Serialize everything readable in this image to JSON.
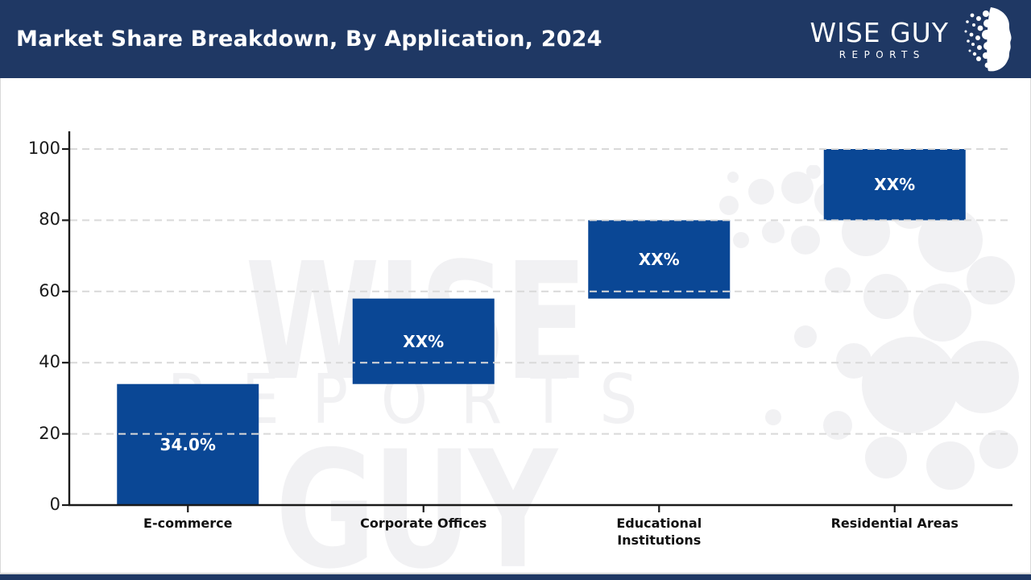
{
  "header": {
    "title": "Market Share Breakdown, By Application, 2024",
    "logo": {
      "name": "WISE GUY",
      "sub": "REPORTS"
    }
  },
  "watermark": {
    "line1": "WISE GUY",
    "line2": "REPORTS"
  },
  "chart_data": {
    "type": "bar",
    "subtype": "floating-waterfall",
    "title": "Market Share Breakdown, By Application, 2024",
    "categories": [
      "E-commerce",
      "Corporate Offices",
      "Educational\nInstitutions",
      "Residential Areas"
    ],
    "bars": [
      {
        "category": "E-commerce",
        "from": 0,
        "to": 34,
        "label": "34.0%"
      },
      {
        "category": "Corporate Offices",
        "from": 34,
        "to": 58,
        "label": "XX%"
      },
      {
        "category": "Educational Institutions",
        "from": 58,
        "to": 80,
        "label": "XX%"
      },
      {
        "category": "Residential Areas",
        "from": 80,
        "to": 100,
        "label": "XX%"
      }
    ],
    "xlabel": "",
    "ylabel": "",
    "ylim": [
      0,
      100
    ],
    "yticks": [
      0,
      20,
      40,
      60,
      80,
      100
    ],
    "grid": {
      "horizontal": true,
      "style": "dashed",
      "above_bars": true
    },
    "legend": null,
    "bar_color": "#0a4795",
    "bar_label_color": "#ffffff"
  },
  "colors": {
    "header_bg": "#1f3864",
    "footer_bg": "#1f3864",
    "bar": "#0a4795",
    "grid_line": "#d9d9d9",
    "axis_line": "#1a1a1a",
    "watermark": "#f1f1f3",
    "title_text": "#ffffff"
  }
}
